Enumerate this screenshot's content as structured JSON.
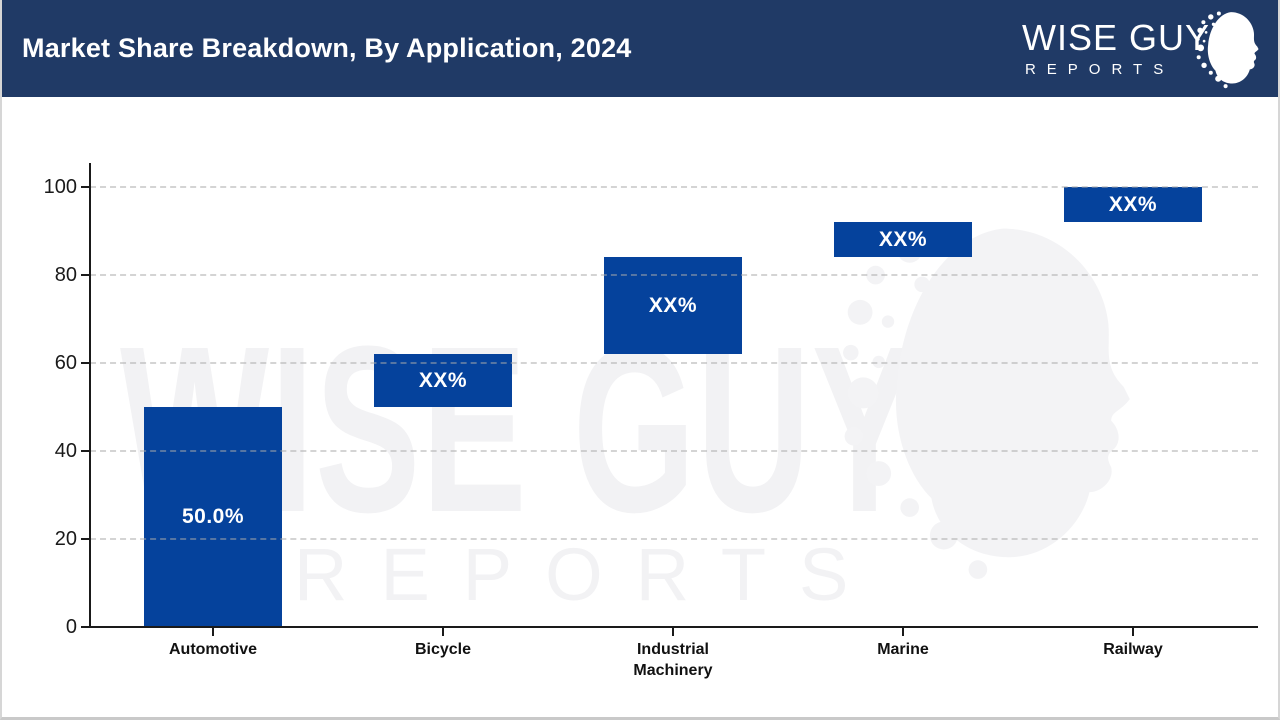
{
  "page": {
    "background": "#ffffff"
  },
  "header": {
    "title": "Market Share Breakdown, By Application, 2024",
    "background": "#203a66",
    "logo": {
      "wordmark": "WISE GUY",
      "subtext": "REPORTS",
      "face_icon": "dotted-face-profile"
    }
  },
  "watermark": {
    "wordmark": "WISE GUY",
    "subtext": "REPORTS",
    "face_icon": "dotted-face-profile"
  },
  "chart_data": {
    "type": "bar",
    "variant": "waterfall",
    "title": "Market Share Breakdown, By Application, 2024",
    "categories": [
      "Automotive",
      "Bicycle",
      "Industrial Machinery",
      "Marine",
      "Railway"
    ],
    "segments": [
      {
        "category": "Automotive",
        "start": 0,
        "end": 50,
        "label": "50.0%"
      },
      {
        "category": "Bicycle",
        "start": 50,
        "end": 62,
        "label": "XX%"
      },
      {
        "category": "Industrial Machinery",
        "start": 62,
        "end": 84,
        "label": "XX%"
      },
      {
        "category": "Marine",
        "start": 84,
        "end": 92,
        "label": "XX%"
      },
      {
        "category": "Railway",
        "start": 92,
        "end": 100,
        "label": "XX%"
      }
    ],
    "ylim": [
      0,
      100
    ],
    "yticks": [
      0,
      20,
      40,
      60,
      80,
      100
    ],
    "grid": "horizontal-dashed",
    "legend_position": "none",
    "bar_color": "#05429c",
    "bar_label_color": "#ffffff",
    "axis_color": "#1a1a1a"
  }
}
